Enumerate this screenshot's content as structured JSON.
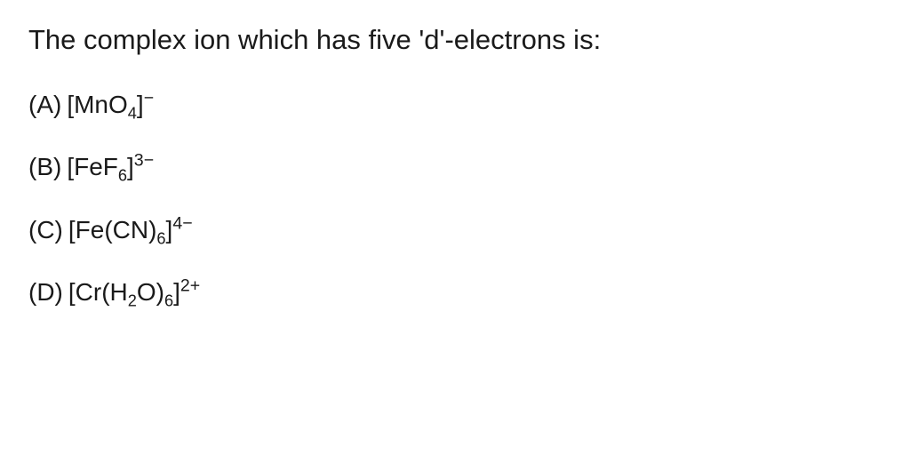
{
  "question": {
    "prefix": "The complex ion which has five ",
    "quoted": "'d'",
    "suffix": "-electrons is:"
  },
  "options": {
    "A": {
      "label": "(A)",
      "open": "[",
      "e1": "MnO",
      "s1": "4",
      "close": "]",
      "charge": "−"
    },
    "B": {
      "label": "(B)",
      "open": "[",
      "e1": "FeF",
      "s1": "6",
      "close": "]",
      "charge": "3−"
    },
    "C": {
      "label": "(C)",
      "open": "[",
      "e1": "Fe(CN)",
      "s1": "6",
      "close": "]",
      "charge": "4−"
    },
    "D": {
      "label": "(D)",
      "open": "[",
      "e1": "Cr(H",
      "s1": "2",
      "e2": "O)",
      "s2": "6",
      "close": "]",
      "charge": "2+"
    }
  },
  "style": {
    "text_color": "#1a1a1a",
    "background_color": "#ffffff",
    "question_fontsize": 31,
    "option_fontsize": 28,
    "font_family": "Segoe UI, Helvetica Neue, Arial, sans-serif"
  }
}
